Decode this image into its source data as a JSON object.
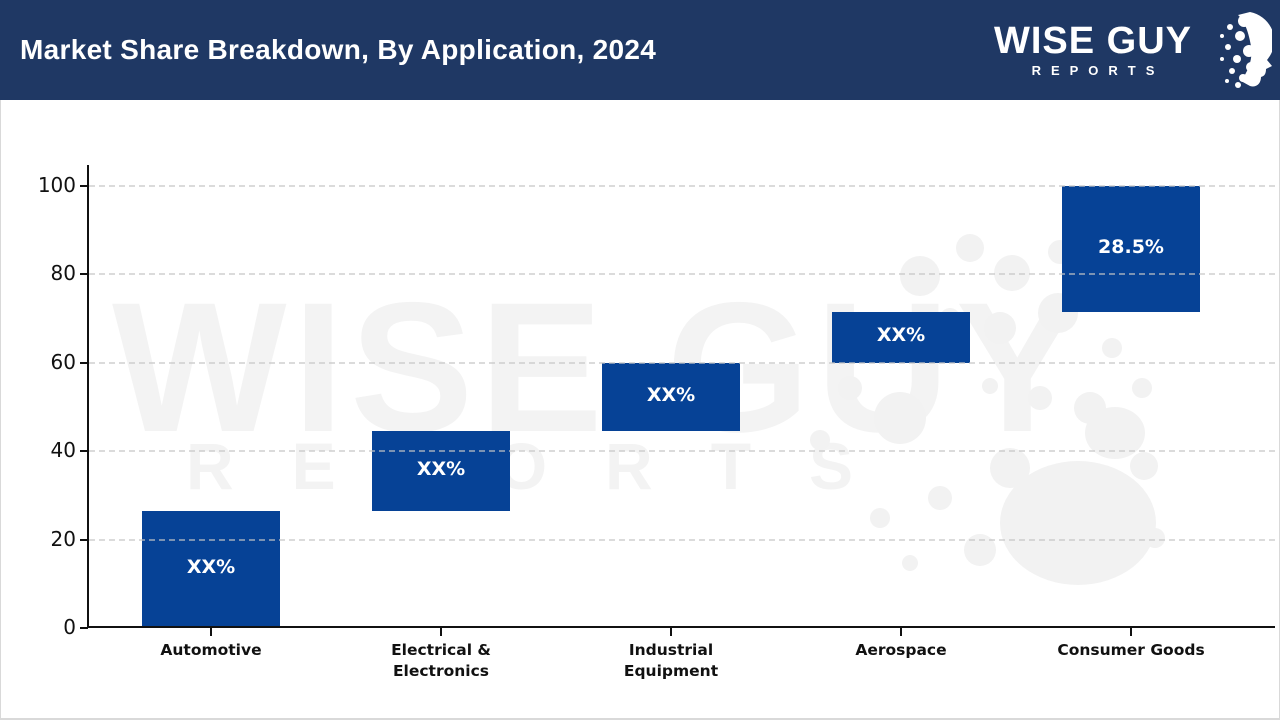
{
  "header": {
    "title": "Market Share Breakdown, By Application, 2024",
    "logo_line1": "WISE GUY",
    "logo_line2": "REPORTS"
  },
  "colors": {
    "header_bg": "#1f3864",
    "bar": "#064296",
    "bar_label": "#ffffff",
    "axis": "#111111",
    "gridline": "#d9d9d9",
    "watermark": "#f3f3f3"
  },
  "watermark": {
    "line1": "WISE GUY",
    "line2": "REPORTS"
  },
  "chart_data": {
    "type": "bar",
    "subtype": "waterfall",
    "title": "Market Share Breakdown, By Application, 2024",
    "xlabel": "",
    "ylabel": "",
    "ylim": [
      0,
      105
    ],
    "yticks": [
      0,
      20,
      40,
      60,
      80,
      100
    ],
    "grid": "dashed horizontal gridlines",
    "legend": "none",
    "categories": [
      "Automotive",
      "Electrical &\nElectronics",
      "Industrial\nEquipment",
      "Aerospace",
      "Consumer Goods"
    ],
    "segments": [
      {
        "category": "Automotive",
        "start": 0,
        "end": 26.5,
        "label": "XX%"
      },
      {
        "category": "Electrical & Electronics",
        "start": 26.5,
        "end": 44.5,
        "label": "XX%"
      },
      {
        "category": "Industrial Equipment",
        "start": 44.5,
        "end": 60,
        "label": "XX%"
      },
      {
        "category": "Aerospace",
        "start": 60,
        "end": 71.5,
        "label": "XX%"
      },
      {
        "category": "Consumer Goods",
        "start": 71.5,
        "end": 100,
        "label": "28.5%"
      }
    ]
  }
}
